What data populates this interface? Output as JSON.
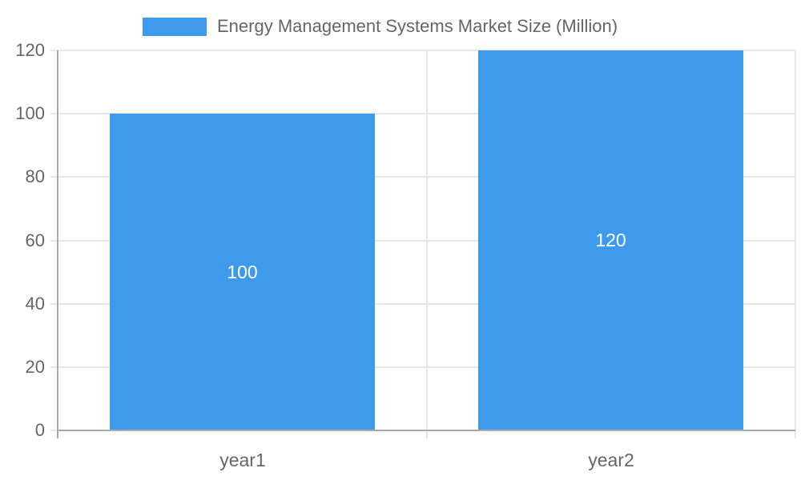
{
  "chart_data": {
    "type": "bar",
    "title": "Energy Management Systems Market Size (Million)",
    "legend": {
      "label": "Energy Management Systems Market Size (Million)",
      "position": "top"
    },
    "categories": [
      "year1",
      "year2"
    ],
    "series": [
      {
        "name": "Energy Management Systems Market Size (Million)",
        "values": [
          100,
          120
        ]
      }
    ],
    "value_labels": [
      "100",
      "120"
    ],
    "xlabel": "",
    "ylabel": "",
    "ylim": [
      0,
      120
    ],
    "ytick_step": 20,
    "yticks": [
      0,
      20,
      40,
      60,
      80,
      100,
      120
    ],
    "grid": true,
    "colors": {
      "bar": "#3d9aec",
      "gridline": "#e6e6e6",
      "axis_line": "#aaaaaa",
      "tick_text": "#666666",
      "legend_text": "#666666",
      "value_label_text": "#ffffff",
      "background": "#ffffff"
    }
  }
}
